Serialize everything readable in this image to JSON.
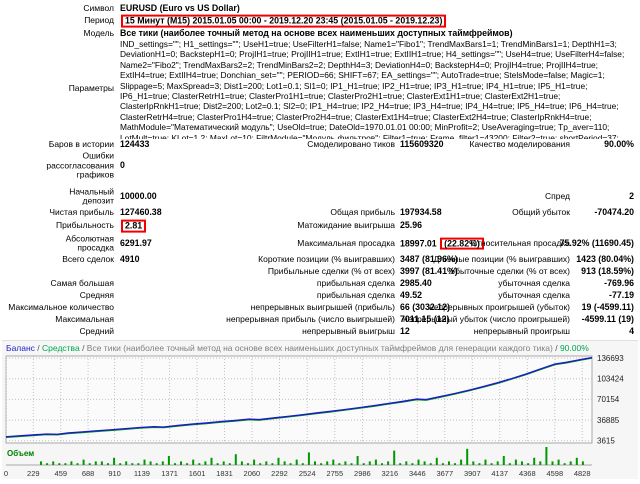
{
  "report": {
    "rows": [
      {
        "h": 11,
        "cells": [
          {
            "pos": "c1",
            "t": "Символ"
          },
          {
            "pos": "c2",
            "t": "EURUSD (Euro vs US Dollar)"
          }
        ]
      },
      {
        "h": 14,
        "cells": [
          {
            "pos": "c1",
            "t": "Период"
          },
          {
            "pos": "c2",
            "box": "15 Минут (M15) 2015.01.05 00:00 - 2019.12.20 23:45 (2015.01.05 - 2019.12.23)"
          }
        ]
      },
      {
        "h": 11,
        "cells": [
          {
            "pos": "c1",
            "t": "Модель"
          },
          {
            "pos": "c2",
            "t": "Все тики (наиболее точный метод на основе всех наименьших доступных таймфреймов)"
          }
        ]
      },
      {
        "h": 100,
        "cells": [
          {
            "pos": "c1",
            "t": "Параметры"
          },
          {
            "pos": "params",
            "t": "IND_settings=\"\"; H1_settings=\"\"; UseH1=true; UseFilterH1=false; Name1=\"Fibo1\"; TrendMaxBars1=1; TrendMinBars1=1; DepthH1=3; DeviationH1=0; BackstepH1=0; ProjIH1=true; ProjIIH1=true; ExtIH1=true; ExtIIH1=true; H4_settings=\"\"; UseH4=true; UseFilterH4=false; Name2=\"Fibo2\"; TrendMaxBars2=2; TrendMinBars2=2; DepthH4=3; DeviationH4=0; BackstepH4=0; ProjIH4=true; ProjIIH4=true; ExtIH4=true; ExtIIH4=true; Donchian_set=\"\"; PERIOD=66; SHIFT=67; EA_settings=\"\"; AutoTrade=true; StelsMode=false; Magic=1; Slippage=5; MaxSpread=3; Dist1=200; Lot1=0.1; Sl1=0; IP1_H1=true; IP2_H1=true; IP3_H1=true; IP4_H1=true; IP5_H1=true; IP6_H1=true; ClasterRetrH1=true; ClasterPro1H1=true; ClasterPro2H1=true; ClasterExt1H1=true; ClasterExt2H1=true; ClasterIpRnkH1=true; Dist2=200; Lot2=0.1; Sl2=0; IP1_H4=true; IP2_H4=true; IP3_H4=true; IP4_H4=true; IP5_H4=true; IP6_H4=true; ClasterRetrH4=true; ClasterPro1H4=true; ClasterPro2H4=true; ClasterExt1H4=true; ClasterExt2H4=true; ClasterIpRnkH4=true; MathModule=\"Математический модуль\"; UseOld=true; DateOld=1970.01.01 00:00; MinProfit=2; UseAveraging=true; Tp_aver=110; LotMult=true; KLot=1.2; MaxLot=10; FiltrModule=\"Модуль фильтров\"; Filter1=true; Frame_filter1=43200; Filter2=true; shortPeriod=37; longPeriod=92; Filter3=false; FastPeriod=23; SlowPeriod=73;"
          }
        ]
      },
      {
        "h": 12,
        "cells": [
          {
            "pos": "c1",
            "t": "Баров в истории"
          },
          {
            "pos": "c2",
            "t": "124433"
          },
          {
            "pos": "c3",
            "t": "Смоделировано тиков"
          },
          {
            "pos": "c4",
            "t": "115609320"
          },
          {
            "pos": "c5",
            "t": "Качество моделирования"
          },
          {
            "pos": "c6",
            "t": "90.00%"
          }
        ]
      },
      {
        "h": 30,
        "cells": [
          {
            "pos": "c1",
            "t": "Ошибки\nрассогласования\nграфиков"
          },
          {
            "pos": "c2",
            "t": "0"
          }
        ]
      },
      {
        "h": 5,
        "cells": []
      },
      {
        "h": 21,
        "cells": [
          {
            "pos": "c1",
            "t": "Начальный\nдепозит"
          },
          {
            "pos": "c2",
            "t": "10000.00"
          },
          {
            "pos": "c5",
            "t": "Спред"
          },
          {
            "pos": "c6",
            "t": "2"
          }
        ]
      },
      {
        "h": 12,
        "cells": [
          {
            "pos": "c1",
            "t": "Чистая прибыль"
          },
          {
            "pos": "c2",
            "t": "127460.38"
          },
          {
            "pos": "c3",
            "t": "Общая прибыль"
          },
          {
            "pos": "c4",
            "t": "197934.58"
          },
          {
            "pos": "c5",
            "t": "Общий убыток"
          },
          {
            "pos": "c6",
            "t": "-70474.20"
          }
        ]
      },
      {
        "h": 14,
        "cells": [
          {
            "pos": "c1",
            "t": "Прибыльность"
          },
          {
            "pos": "c2",
            "box": "2.81"
          },
          {
            "pos": "c3",
            "t": "Матожидание выигрыша"
          },
          {
            "pos": "c4",
            "t": "25.96"
          }
        ]
      },
      {
        "h": 21,
        "cells": [
          {
            "pos": "c1",
            "t": "Абсолютная\nпросадка"
          },
          {
            "pos": "c2",
            "t": "6291.97"
          },
          {
            "pos": "c3",
            "t": "Максимальная просадка"
          },
          {
            "pos": "c4",
            "t": "18997.01 ",
            "box": "(22.82%)"
          },
          {
            "pos": "c5",
            "t": "Относительная просадка"
          },
          {
            "pos": "c6",
            "t": "75.92% (11690.45)"
          }
        ]
      },
      {
        "h": 12,
        "cells": [
          {
            "pos": "c1",
            "t": "Всего сделок"
          },
          {
            "pos": "c2",
            "t": "4910"
          },
          {
            "pos": "c3",
            "t": "Короткие позиции (% выигравших)"
          },
          {
            "pos": "c4",
            "t": "3487 (81.96%)"
          },
          {
            "pos": "c5",
            "t": "Длинные позиции (% выигравших)"
          },
          {
            "pos": "c6",
            "t": "1423 (80.04%)"
          }
        ]
      },
      {
        "h": 12,
        "cells": [
          {
            "pos": "c3",
            "t": "Прибыльные сделки (% от всех)"
          },
          {
            "pos": "c4",
            "t": "3997 (81.41%)"
          },
          {
            "pos": "c5",
            "t": "Убыточные сделки (% от всех)"
          },
          {
            "pos": "c6",
            "t": "913 (18.59%)"
          }
        ]
      },
      {
        "h": 12,
        "cells": [
          {
            "pos": "c1",
            "t": "Самая большая"
          },
          {
            "pos": "c3",
            "t": "прибыльная сделка"
          },
          {
            "pos": "c4",
            "t": "2985.40"
          },
          {
            "pos": "c5",
            "t": "убыточная сделка"
          },
          {
            "pos": "c6",
            "t": "-769.96"
          }
        ]
      },
      {
        "h": 12,
        "cells": [
          {
            "pos": "c1",
            "t": "Средняя"
          },
          {
            "pos": "c3",
            "t": "прибыльная сделка"
          },
          {
            "pos": "c4",
            "t": "49.52"
          },
          {
            "pos": "c5",
            "t": "убыточная сделка"
          },
          {
            "pos": "c6",
            "t": "-77.19"
          }
        ]
      },
      {
        "h": 12,
        "cells": [
          {
            "pos": "c1",
            "t": "Максимальное количество"
          },
          {
            "pos": "c3",
            "t": "непрерывных выигрышей (прибыль)"
          },
          {
            "pos": "c4",
            "t": "66 (3032.12)"
          },
          {
            "pos": "c5",
            "t": "непрерывных проигрышей (убыток)"
          },
          {
            "pos": "c6",
            "t": "19 (-4599.11)"
          }
        ]
      },
      {
        "h": 12,
        "cells": [
          {
            "pos": "c1",
            "t": "Максимальная"
          },
          {
            "pos": "c3",
            "t": "непрерывная прибыль (число выигрышей)"
          },
          {
            "pos": "c4",
            "t": "7011.15 (12)"
          },
          {
            "pos": "c5",
            "t": "непрерывный убыток (число проигрышей)"
          },
          {
            "pos": "c6",
            "t": "-4599.11 (19)"
          }
        ]
      },
      {
        "h": 12,
        "cells": [
          {
            "pos": "c1",
            "t": "Средний"
          },
          {
            "pos": "c3",
            "t": "непрерывный выигрыш"
          },
          {
            "pos": "c4",
            "t": "12"
          },
          {
            "pos": "c5",
            "t": "непрерывный проигрыш"
          },
          {
            "pos": "c6",
            "t": "4"
          }
        ]
      }
    ]
  },
  "chart_data": {
    "type": "line",
    "title": "",
    "legend_parts": [
      {
        "t": "Баланс",
        "c": "#2222cc"
      },
      {
        "t": " / ",
        "c": "#555555"
      },
      {
        "t": "Средства",
        "c": "#00a651"
      },
      {
        "t": " / ",
        "c": "#555555"
      },
      {
        "t": "Все тики (наиболее точный метод на основе всех наименьших доступных таймфреймов для генерации каждого тика)",
        "c": "#808080"
      },
      {
        "t": " / ",
        "c": "#555555"
      },
      {
        "t": "90.00%",
        "c": "#00a651"
      }
    ],
    "ylim": [
      0,
      140000
    ],
    "yticks": [
      136693,
      103424,
      70154,
      36885,
      3615
    ],
    "xticks": [
      0,
      229,
      459,
      688,
      910,
      1139,
      1371,
      1601,
      1831,
      2060,
      2292,
      2524,
      2755,
      2986,
      3216,
      3446,
      3677,
      3907,
      4137,
      4368,
      4598,
      4828
    ],
    "xmax": 4910,
    "grid": true,
    "legend_position": "top-left",
    "volume_label": "Объем",
    "series": [
      {
        "name": "Баланс",
        "color": "#1a1acc",
        "points": [
          [
            0,
            10000
          ],
          [
            100,
            11400
          ],
          [
            220,
            12800
          ],
          [
            340,
            14400
          ],
          [
            430,
            14000
          ],
          [
            520,
            16200
          ],
          [
            640,
            17800
          ],
          [
            760,
            19600
          ],
          [
            880,
            21200
          ],
          [
            1000,
            23000
          ],
          [
            1120,
            24800
          ],
          [
            1240,
            26200
          ],
          [
            1320,
            25600
          ],
          [
            1440,
            28200
          ],
          [
            1560,
            30400
          ],
          [
            1680,
            32200
          ],
          [
            1800,
            34400
          ],
          [
            1920,
            36200
          ],
          [
            2040,
            38400
          ],
          [
            2120,
            37600
          ],
          [
            2240,
            40200
          ],
          [
            2360,
            42800
          ],
          [
            2480,
            45400
          ],
          [
            2600,
            48200
          ],
          [
            2720,
            51000
          ],
          [
            2840,
            53800
          ],
          [
            2960,
            56800
          ],
          [
            3080,
            60000
          ],
          [
            3200,
            63400
          ],
          [
            3320,
            66800
          ],
          [
            3440,
            70600
          ],
          [
            3520,
            69800
          ],
          [
            3640,
            74600
          ],
          [
            3760,
            79600
          ],
          [
            3880,
            85000
          ],
          [
            4000,
            90800
          ],
          [
            4120,
            97000
          ],
          [
            4240,
            103800
          ],
          [
            4360,
            111200
          ],
          [
            4480,
            119200
          ],
          [
            4600,
            127000
          ],
          [
            4700,
            130000
          ],
          [
            4800,
            133800
          ],
          [
            4910,
            137460
          ]
        ]
      },
      {
        "name": "Средства",
        "color": "#00a000",
        "offset": -1200,
        "points": []
      }
    ],
    "volumes": [
      2,
      1,
      2,
      1,
      1,
      2,
      1,
      3,
      1,
      2,
      2,
      1,
      4,
      1,
      2,
      1,
      1,
      3,
      2,
      1,
      2,
      5,
      1,
      2,
      1,
      3,
      1,
      2,
      4,
      1,
      2,
      1,
      6,
      2,
      1,
      3,
      1,
      2,
      1,
      4,
      2,
      1,
      3,
      1,
      7,
      2,
      1,
      2,
      3,
      1,
      2,
      1,
      5,
      1,
      2,
      3,
      1,
      2,
      8,
      1,
      2,
      1,
      3,
      2,
      1,
      4,
      1,
      2,
      1,
      3,
      9,
      2,
      1,
      3,
      1,
      2,
      5,
      1,
      3,
      2,
      1,
      4,
      2,
      10,
      2,
      3,
      1,
      2,
      4,
      2
    ]
  }
}
